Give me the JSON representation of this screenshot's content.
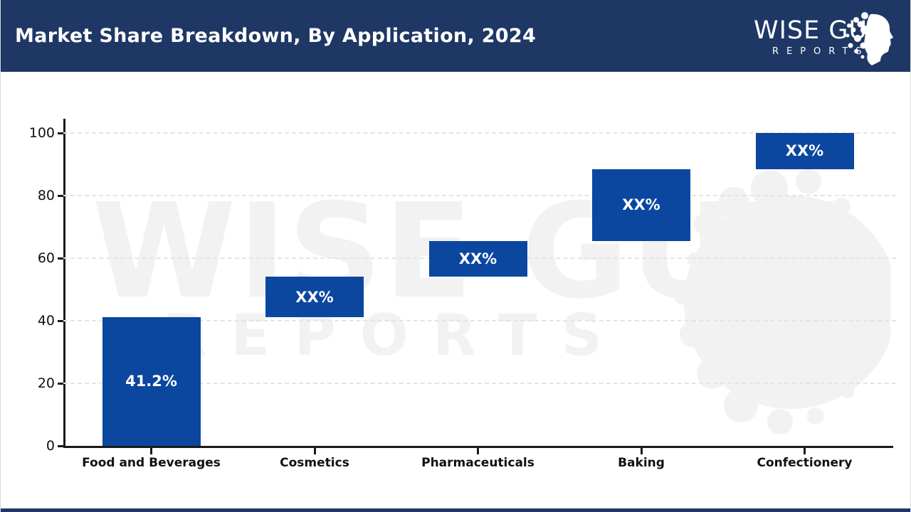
{
  "header": {
    "title": "Market Share Breakdown, By Application, 2024",
    "logo": {
      "line1": "WISE GUY",
      "line2": "REPORTS"
    }
  },
  "watermark": {
    "line1": "WISE GUY",
    "line2": "REPORTS"
  },
  "chart_data": {
    "type": "bar",
    "subtype": "floating-waterfall",
    "title": "Market Share Breakdown, By Application, 2024",
    "xlabel": "",
    "ylabel": "",
    "categories": [
      "Food and Beverages",
      "Cosmetics",
      "Pharmaceuticals",
      "Baking",
      "Confectionery"
    ],
    "segments": [
      {
        "category": "Food and Beverages",
        "start": 0,
        "end": 41.2,
        "label": "41.2%"
      },
      {
        "category": "Cosmetics",
        "start": 41.2,
        "end": 54,
        "label": "XX%"
      },
      {
        "category": "Pharmaceuticals",
        "start": 54,
        "end": 65.5,
        "label": "XX%"
      },
      {
        "category": "Baking",
        "start": 65.5,
        "end": 88.5,
        "label": "XX%"
      },
      {
        "category": "Confectionery",
        "start": 88.5,
        "end": 100,
        "label": "XX%"
      }
    ],
    "y_ticks": [
      0,
      20,
      40,
      60,
      80,
      100
    ],
    "ylim": [
      0,
      100
    ],
    "grid": "dashed-horizontal",
    "legend": "none",
    "bar_color": "#0b479f",
    "bar_label_color": "#ffffff",
    "header_bg_color": "#1e3765",
    "axis_color": "#1a1a1a"
  }
}
